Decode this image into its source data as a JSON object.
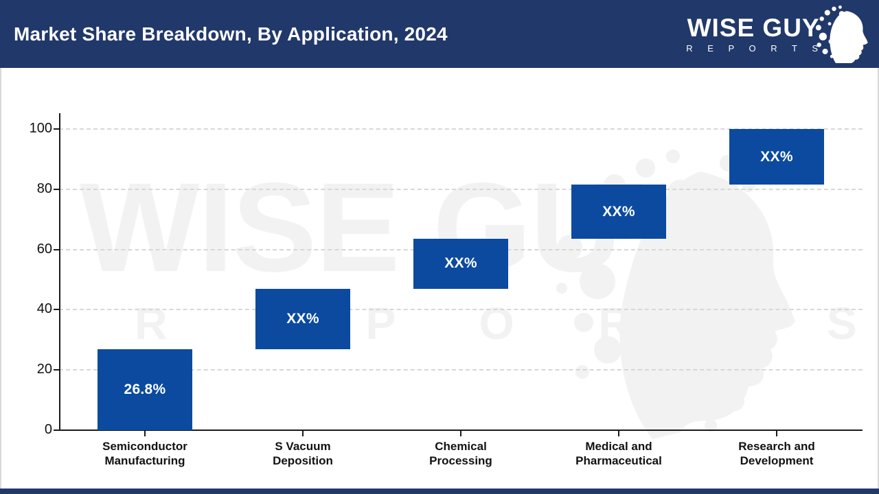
{
  "header": {
    "title": "Market Share Breakdown, By Application, 2024",
    "bg_color": "#21386a",
    "brand": {
      "line1": "WISE GUY",
      "line2": "R E P O R T S"
    }
  },
  "footer": {
    "bg_color": "#21386a"
  },
  "watermark": {
    "line1": "WISE GUY",
    "line2": "R E P O R T S"
  },
  "chart_data": {
    "type": "bar",
    "subtype": "waterfall",
    "title": "Market Share Breakdown, By Application, 2024",
    "categories": [
      "Semiconductor\nManufacturing",
      "S Vacuum\nDeposition",
      "Chemical\nProcessing",
      "Medical and\nPharmaceutical",
      "Research and\nDevelopment"
    ],
    "series": [
      {
        "name": "Market Share",
        "segments": [
          {
            "start": 0,
            "end": 26.8,
            "label": "26.8%"
          },
          {
            "start": 26.8,
            "end": 47,
            "label": "XX%"
          },
          {
            "start": 47,
            "end": 63.5,
            "label": "XX%"
          },
          {
            "start": 63.5,
            "end": 81.5,
            "label": "XX%"
          },
          {
            "start": 81.5,
            "end": 100,
            "label": "XX%"
          }
        ]
      }
    ],
    "ylim": [
      0,
      100
    ],
    "yticks": [
      0,
      20,
      40,
      60,
      80,
      100
    ],
    "xlabel": "",
    "ylabel": "",
    "grid": "horizontal-dashed",
    "legend": "none",
    "bar_color": "#0b4a9f",
    "bar_label_color": "#ffffff",
    "grid_color": "#d7d7d7",
    "axis_color": "#1a1a1a"
  }
}
